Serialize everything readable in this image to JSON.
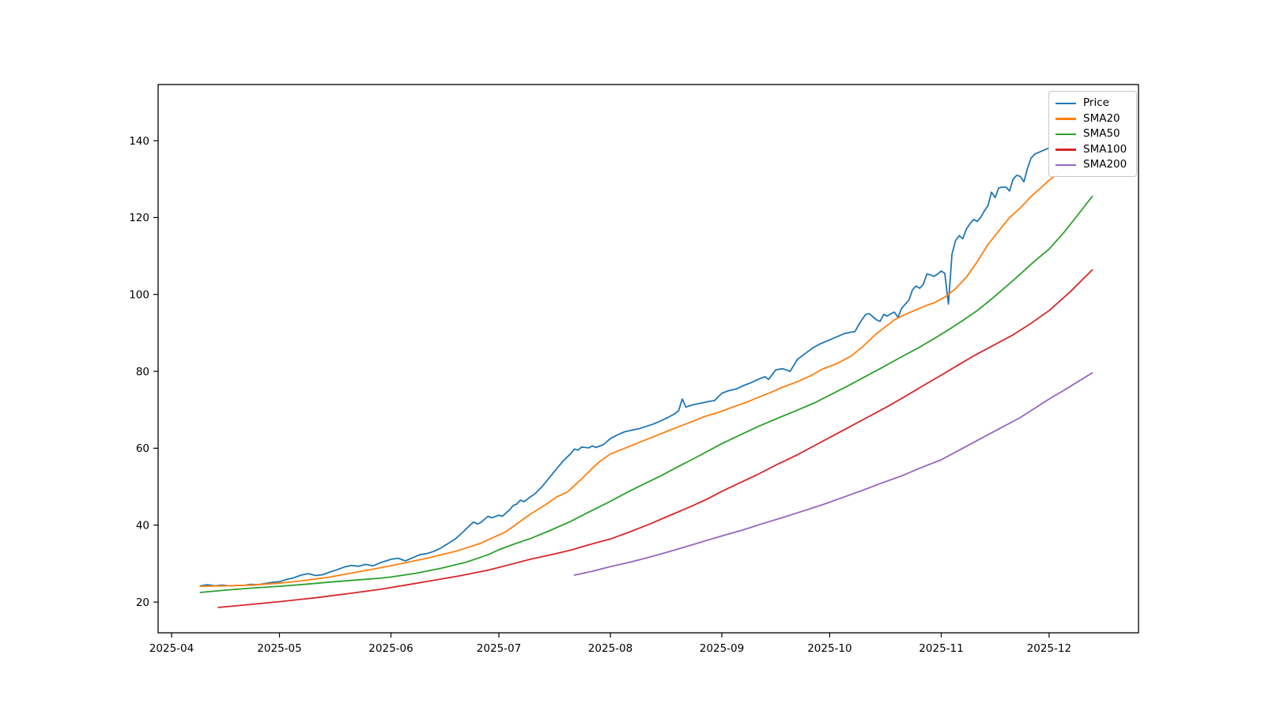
{
  "chart_data": {
    "type": "line",
    "title": "",
    "xlabel": "",
    "ylabel": "",
    "grid": false,
    "x_axis": {
      "unit": "days-since-2025-04-01",
      "xlim_days": [
        -3.74,
        268.86
      ],
      "tick_days": [
        0,
        30,
        61,
        91,
        122,
        153,
        183,
        214,
        244
      ],
      "tick_labels": [
        "2025-04",
        "2025-05",
        "2025-06",
        "2025-07",
        "2025-08",
        "2025-09",
        "2025-10",
        "2025-11",
        "2025-12"
      ]
    },
    "y_axis": {
      "ylim": [
        12.0,
        154.6
      ],
      "ticks": [
        20,
        40,
        60,
        80,
        100,
        120,
        140
      ],
      "tick_labels": [
        "20",
        "40",
        "60",
        "80",
        "100",
        "120",
        "140"
      ]
    },
    "legend": {
      "position": "upper right",
      "entries": [
        {
          "label": "Price",
          "color": "#1f77b4"
        },
        {
          "label": "SMA20",
          "color": "#ff7f0e"
        },
        {
          "label": "SMA50",
          "color": "#2ca02c"
        },
        {
          "label": "SMA100",
          "color": "#d62728"
        },
        {
          "label": "SMA200",
          "color": "#9467bd"
        }
      ]
    },
    "series": [
      {
        "name": "Price",
        "color": "#1f77b4",
        "x": [
          8,
          10,
          12,
          14,
          16,
          18,
          20,
          22,
          24,
          26,
          28,
          30,
          32,
          34,
          36,
          38,
          40,
          42,
          44,
          46,
          48,
          50,
          52,
          54,
          56,
          58,
          60,
          61,
          63,
          65,
          67,
          69,
          71,
          73,
          75,
          77,
          79,
          81,
          83,
          84,
          85,
          86,
          88,
          89,
          91,
          92,
          94,
          95,
          96,
          97,
          98,
          100,
          101,
          103,
          105,
          107,
          109,
          111,
          112,
          113,
          114,
          116,
          117,
          118,
          120,
          122,
          124,
          126,
          128,
          130,
          132,
          134,
          136,
          138,
          140,
          141,
          142,
          143,
          145,
          147,
          149,
          151,
          153,
          155,
          157,
          159,
          161,
          163,
          165,
          166,
          168,
          170,
          172,
          174,
          176,
          178,
          180,
          182,
          183,
          185,
          187,
          189,
          190,
          191,
          192,
          193,
          194,
          195,
          196,
          197,
          198,
          199,
          200,
          201,
          202,
          203,
          205,
          206,
          207,
          208,
          209,
          210,
          211,
          212,
          213,
          214,
          215,
          216,
          217,
          218,
          219,
          220,
          221,
          222,
          223,
          224,
          225,
          226,
          227,
          228,
          229,
          230,
          231,
          232,
          233,
          234,
          235,
          236,
          237,
          238,
          239,
          240,
          242,
          244,
          248,
          252,
          256
        ],
        "y": [
          24.2,
          24.5,
          24.2,
          24.4,
          24.2,
          24.3,
          24.3,
          24.6,
          24.5,
          24.8,
          25.1,
          25.3,
          25.9,
          26.3,
          27.0,
          27.4,
          26.9,
          27.1,
          27.8,
          28.4,
          29.1,
          29.5,
          29.3,
          29.8,
          29.4,
          30.2,
          30.8,
          31.1,
          31.4,
          30.7,
          31.5,
          32.3,
          32.6,
          33.2,
          34.1,
          35.3,
          36.5,
          38.2,
          40.0,
          40.8,
          40.3,
          40.7,
          42.3,
          41.9,
          42.6,
          42.3,
          44.0,
          45.1,
          45.5,
          46.5,
          46.1,
          47.5,
          48.1,
          50.0,
          52.3,
          54.6,
          56.8,
          58.6,
          59.8,
          59.5,
          60.3,
          60.1,
          60.6,
          60.2,
          60.9,
          62.5,
          63.5,
          64.3,
          64.7,
          65.1,
          65.7,
          66.3,
          67.1,
          68.0,
          69.0,
          69.8,
          72.8,
          70.7,
          71.3,
          71.7,
          72.1,
          72.4,
          74.3,
          75.0,
          75.4,
          76.3,
          77.0,
          77.9,
          78.6,
          77.9,
          80.4,
          80.7,
          80.0,
          83.1,
          84.5,
          85.9,
          87.0,
          87.8,
          88.2,
          89.0,
          89.8,
          90.2,
          90.3,
          92.0,
          93.5,
          94.8,
          95.0,
          94.2,
          93.4,
          93.0,
          94.8,
          94.4,
          95.0,
          95.4,
          94.0,
          96.4,
          98.5,
          101.2,
          102.2,
          101.6,
          102.6,
          105.3,
          105.1,
          104.7,
          105.3,
          106.1,
          105.5,
          97.5,
          110.5,
          114.0,
          115.3,
          114.5,
          117.0,
          118.4,
          119.5,
          119.0,
          120.1,
          121.7,
          123.1,
          126.6,
          125.2,
          127.7,
          127.9,
          127.9,
          126.9,
          130.0,
          131.0,
          130.7,
          129.3,
          132.8,
          135.5,
          136.5,
          137.3,
          138.1,
          139.5,
          141.0,
          142.5
        ]
      },
      {
        "name": "SMA20",
        "color": "#ff7f0e",
        "x": [
          8,
          15,
          22,
          30,
          37,
          44,
          51,
          58,
          65,
          72,
          79,
          86,
          93,
          97,
          100,
          104,
          107,
          110,
          114,
          117,
          119,
          122,
          126,
          130,
          134,
          138,
          141,
          145,
          148,
          152,
          156,
          160,
          163,
          167,
          170,
          174,
          178,
          181,
          185,
          189,
          192,
          196,
          201,
          204,
          207,
          210,
          212,
          215,
          218,
          221,
          224,
          227,
          230,
          233,
          236,
          239,
          242,
          244,
          248,
          252,
          256
        ],
        "y": [
          24.1,
          24.2,
          24.4,
          24.9,
          25.6,
          26.5,
          27.7,
          28.9,
          30.2,
          31.6,
          33.2,
          35.3,
          38.3,
          41.0,
          43.0,
          45.3,
          47.3,
          48.6,
          52.0,
          54.8,
          56.5,
          58.5,
          60.0,
          61.5,
          63.0,
          64.5,
          65.6,
          67.0,
          68.2,
          69.3,
          70.7,
          72.0,
          73.2,
          74.7,
          75.9,
          77.3,
          79.0,
          80.6,
          82.0,
          84.0,
          86.3,
          89.8,
          93.4,
          94.8,
          96.0,
          97.2,
          97.8,
          99.3,
          101.5,
          104.5,
          108.5,
          113.0,
          116.5,
          120.0,
          122.5,
          125.5,
          128.0,
          129.7,
          132.5,
          135.0,
          137.5
        ]
      },
      {
        "name": "SMA50",
        "color": "#2ca02c",
        "x": [
          8,
          15,
          22,
          30,
          37,
          44,
          51,
          58,
          61,
          68,
          75,
          82,
          88,
          91,
          95,
          100,
          105,
          111,
          116,
          122,
          127,
          132,
          136,
          141,
          145,
          149,
          153,
          158,
          163,
          169,
          174,
          179,
          183,
          188,
          193,
          198,
          203,
          208,
          212,
          216,
          220,
          224,
          228,
          232,
          236,
          240,
          244,
          248,
          252,
          256
        ],
        "y": [
          22.5,
          23.1,
          23.6,
          24.1,
          24.6,
          25.2,
          25.7,
          26.2,
          26.5,
          27.5,
          28.8,
          30.4,
          32.3,
          33.6,
          35.0,
          36.6,
          38.5,
          41.0,
          43.4,
          46.2,
          48.7,
          51.0,
          52.8,
          55.3,
          57.2,
          59.2,
          61.2,
          63.4,
          65.6,
          68.0,
          69.9,
          71.9,
          73.8,
          76.2,
          78.7,
          81.2,
          83.8,
          86.3,
          88.5,
          90.8,
          93.2,
          95.8,
          98.8,
          102.0,
          105.3,
          108.7,
          111.8,
          116.0,
          120.7,
          125.5
        ]
      },
      {
        "name": "SMA100",
        "color": "#d62728",
        "x": [
          13,
          20,
          30,
          40,
          50,
          58,
          65,
          72,
          80,
          88,
          91,
          100,
          105,
          111,
          116,
          122,
          127,
          133,
          138,
          144,
          149,
          153,
          158,
          163,
          168,
          174,
          179,
          184,
          189,
          194,
          199,
          204,
          209,
          214,
          219,
          223,
          228,
          234,
          239,
          244,
          250,
          256
        ],
        "y": [
          18.6,
          19.2,
          20.1,
          21.1,
          22.3,
          23.3,
          24.4,
          25.5,
          26.8,
          28.3,
          29.0,
          31.2,
          32.2,
          33.5,
          34.9,
          36.4,
          38.1,
          40.3,
          42.3,
          44.7,
          46.8,
          48.8,
          51.0,
          53.2,
          55.6,
          58.3,
          60.8,
          63.3,
          65.8,
          68.3,
          70.8,
          73.5,
          76.3,
          79.0,
          81.8,
          84.0,
          86.5,
          89.5,
          92.5,
          95.8,
          100.8,
          106.4
        ]
      },
      {
        "name": "SMA200",
        "color": "#9467bd",
        "x": [
          112,
          117,
          122,
          128,
          133,
          138,
          143,
          148,
          153,
          159,
          164,
          170,
          175,
          181,
          186,
          192,
          197,
          203,
          208,
          214,
          219,
          225,
          230,
          236,
          241,
          244,
          248,
          252,
          256
        ],
        "y": [
          27.0,
          28.0,
          29.2,
          30.5,
          31.7,
          33.0,
          34.4,
          35.8,
          37.2,
          38.8,
          40.3,
          42.0,
          43.5,
          45.3,
          47.0,
          49.0,
          50.8,
          52.8,
          54.8,
          57.0,
          59.5,
          62.5,
          65.0,
          68.0,
          71.0,
          72.8,
          75.0,
          77.3,
          79.6
        ]
      }
    ]
  }
}
